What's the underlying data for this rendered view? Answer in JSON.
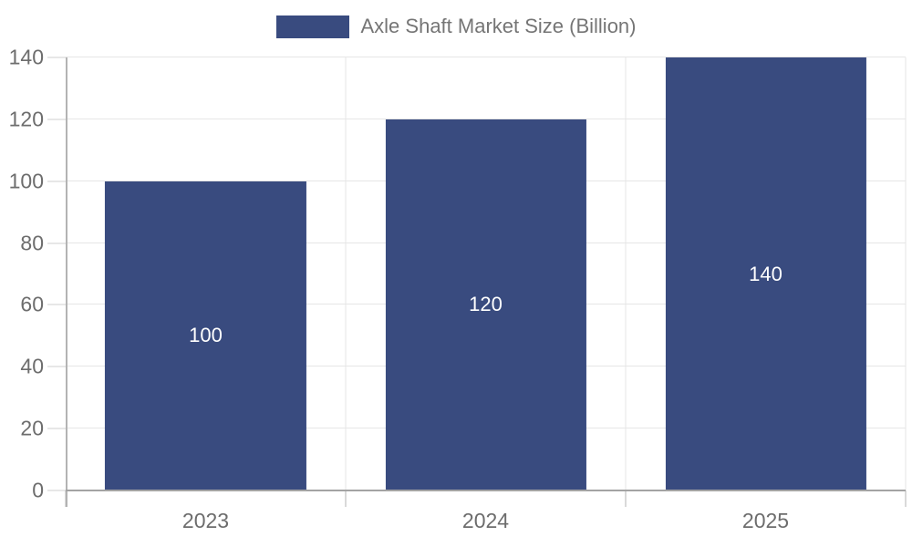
{
  "chart_data": {
    "type": "bar",
    "title": "Axle Shaft Market Size (Billion)",
    "categories": [
      "2023",
      "2024",
      "2025"
    ],
    "series": [
      {
        "name": "Axle Shaft Market Size (Billion)",
        "values": [
          100,
          120,
          140
        ]
      }
    ],
    "values": [
      100,
      120,
      140
    ],
    "data_labels": [
      "100",
      "120",
      "140"
    ],
    "xlabel": "",
    "ylabel": "",
    "ylim": [
      0,
      140
    ],
    "yticks": [
      0,
      20,
      40,
      60,
      80,
      100,
      120,
      140
    ],
    "grid": true,
    "legend_position": "top-center",
    "colors": {
      "bar": "#394B7F",
      "background": "#FFFFFF",
      "grid": "#E6E6E6",
      "grid_strong": "#CFCFCF",
      "axis": "#A3A3A3",
      "axis_soft": "#B3B3B3",
      "tick_label": "#6D6D6D",
      "legend_text": "#757575",
      "data_label": "#FFFFFF"
    }
  }
}
